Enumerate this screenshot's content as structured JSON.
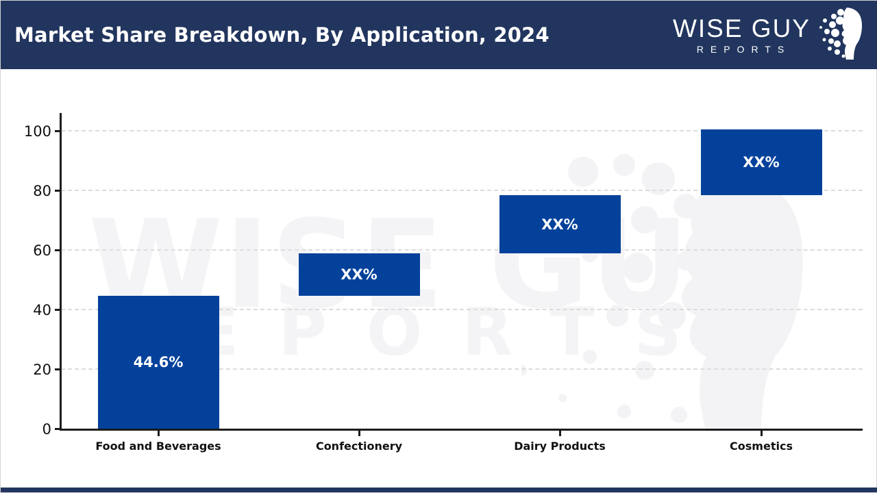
{
  "header": {
    "title": "Market Share Breakdown, By Application, 2024",
    "background_color": "#21355e",
    "logo": {
      "line1": "WISE GUY",
      "line2": "REPORTS"
    }
  },
  "watermark": {
    "line1": "WISE GUY",
    "line2": "REPORTS"
  },
  "footer": {
    "bar_color": "#21355e"
  },
  "chart_data": {
    "type": "bar",
    "subtype": "waterfall",
    "title": "Market Share Breakdown, By Application, 2024",
    "categories": [
      "Food and Beverages",
      "Confectionery",
      "Dairy Products",
      "Cosmetics"
    ],
    "segments": [
      {
        "category": "Food and Beverages",
        "start": 0,
        "end": 44.6,
        "label": "44.6%"
      },
      {
        "category": "Confectionery",
        "start": 44.6,
        "end": 58.8,
        "label": "XX%"
      },
      {
        "category": "Dairy Products",
        "start": 58.8,
        "end": 78.3,
        "label": "XX%"
      },
      {
        "category": "Cosmetics",
        "start": 78.3,
        "end": 100.5,
        "label": "XX%"
      }
    ],
    "xlabel": "",
    "ylabel": "",
    "yticks": [
      0,
      20,
      40,
      60,
      80,
      100
    ],
    "ylim": [
      0,
      106
    ],
    "grid": "horizontal-dashed",
    "legend": "none",
    "bar_color": "#04419b",
    "bar_label_color": "#ffffff"
  }
}
